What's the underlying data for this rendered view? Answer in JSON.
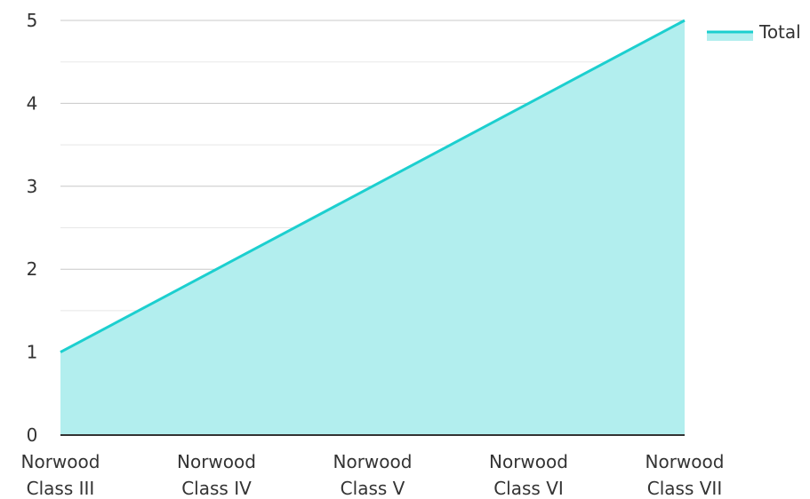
{
  "chart_data": {
    "type": "area",
    "categories": [
      [
        "Norwood",
        "Class III"
      ],
      [
        "Norwood",
        "Class IV"
      ],
      [
        "Norwood",
        "Class V"
      ],
      [
        "Norwood",
        "Class VI"
      ],
      [
        "Norwood",
        "Class VII"
      ]
    ],
    "series": [
      {
        "name": "Total",
        "values": [
          1,
          2,
          3,
          4,
          5
        ],
        "line_color": "#1ccfcf",
        "fill_color": "#b2eeee"
      }
    ],
    "yticks": [
      "0",
      "1",
      "2",
      "3",
      "4",
      "5"
    ],
    "ylim": [
      0,
      5
    ],
    "grid": true,
    "legend": "top-right",
    "title": "",
    "xlabel": "",
    "ylabel": ""
  }
}
